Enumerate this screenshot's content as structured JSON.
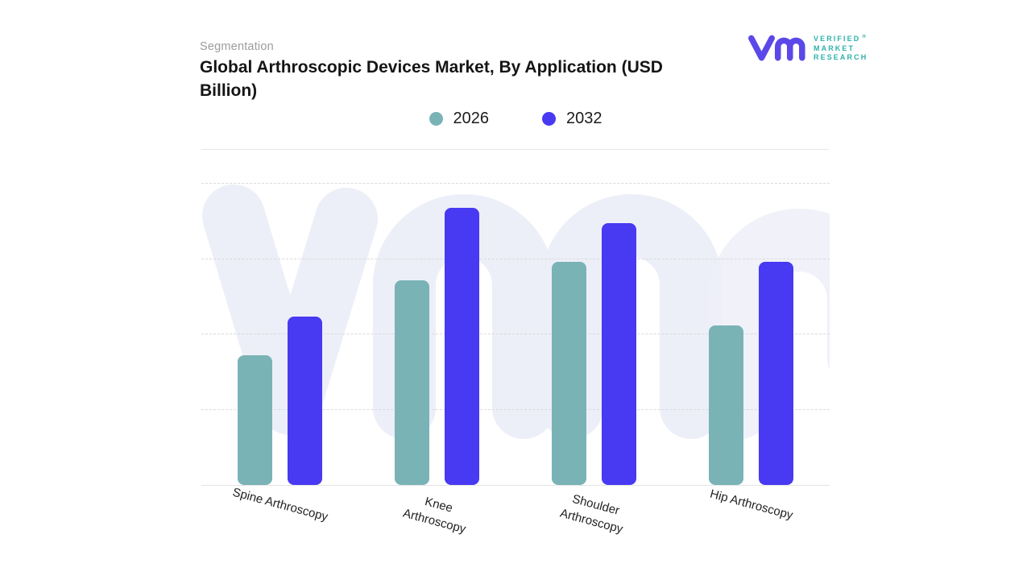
{
  "header": {
    "eyebrow": "Segmentation",
    "title": "Global Arthroscopic Devices Market, By Application (USD Billion)"
  },
  "logo": {
    "monogram": "vm-monogram",
    "lines": [
      "VERIFIED",
      "MARKET",
      "RESEARCH"
    ],
    "registered_mark": "®",
    "mark_color": "#5B48E8",
    "text_color": "#2FB1AC"
  },
  "legend": [
    {
      "label": "2026",
      "color": "#7AB3B6"
    },
    {
      "label": "2032",
      "color": "#4839F2"
    }
  ],
  "chart_data": {
    "type": "bar",
    "title": "Global Arthroscopic Devices Market, By Application (USD Billion)",
    "categories": [
      "Spine Arthroscopy",
      "Knee Arthroscopy",
      "Shoulder Arthroscopy",
      "Hip Arthroscopy"
    ],
    "category_lines": [
      [
        "Spine Arthroscopy"
      ],
      [
        "Knee",
        "Arthroscopy"
      ],
      [
        "Shoulder",
        "Arthroscopy"
      ],
      [
        "Hip Arthroscopy"
      ]
    ],
    "series": [
      {
        "name": "2026",
        "color": "#7AB3B6",
        "values": [
          43,
          68,
          74,
          53
        ]
      },
      {
        "name": "2032",
        "color": "#4839F2",
        "values": [
          56,
          92,
          87,
          74
        ]
      }
    ],
    "xlabel": "",
    "ylabel": "",
    "ylim": [
      0,
      100
    ],
    "values_unit": "percent of plot height (no numeric y-axis labels shown in source)",
    "gridlines": {
      "horizontal": true,
      "style": "dashed",
      "values": [
        25,
        50,
        75,
        100
      ]
    },
    "legend_position": "top-center",
    "bar_corner_radius_px": 8
  },
  "watermark": {
    "text": "vm",
    "color": "#EDEFF8"
  },
  "colors": {
    "background": "#FFFFFF",
    "gridline": "#DADADA",
    "baseline": "#E3E3E3",
    "title_text": "#151515",
    "eyebrow_text": "#9C9C9C",
    "axis_label_text": "#222222"
  }
}
